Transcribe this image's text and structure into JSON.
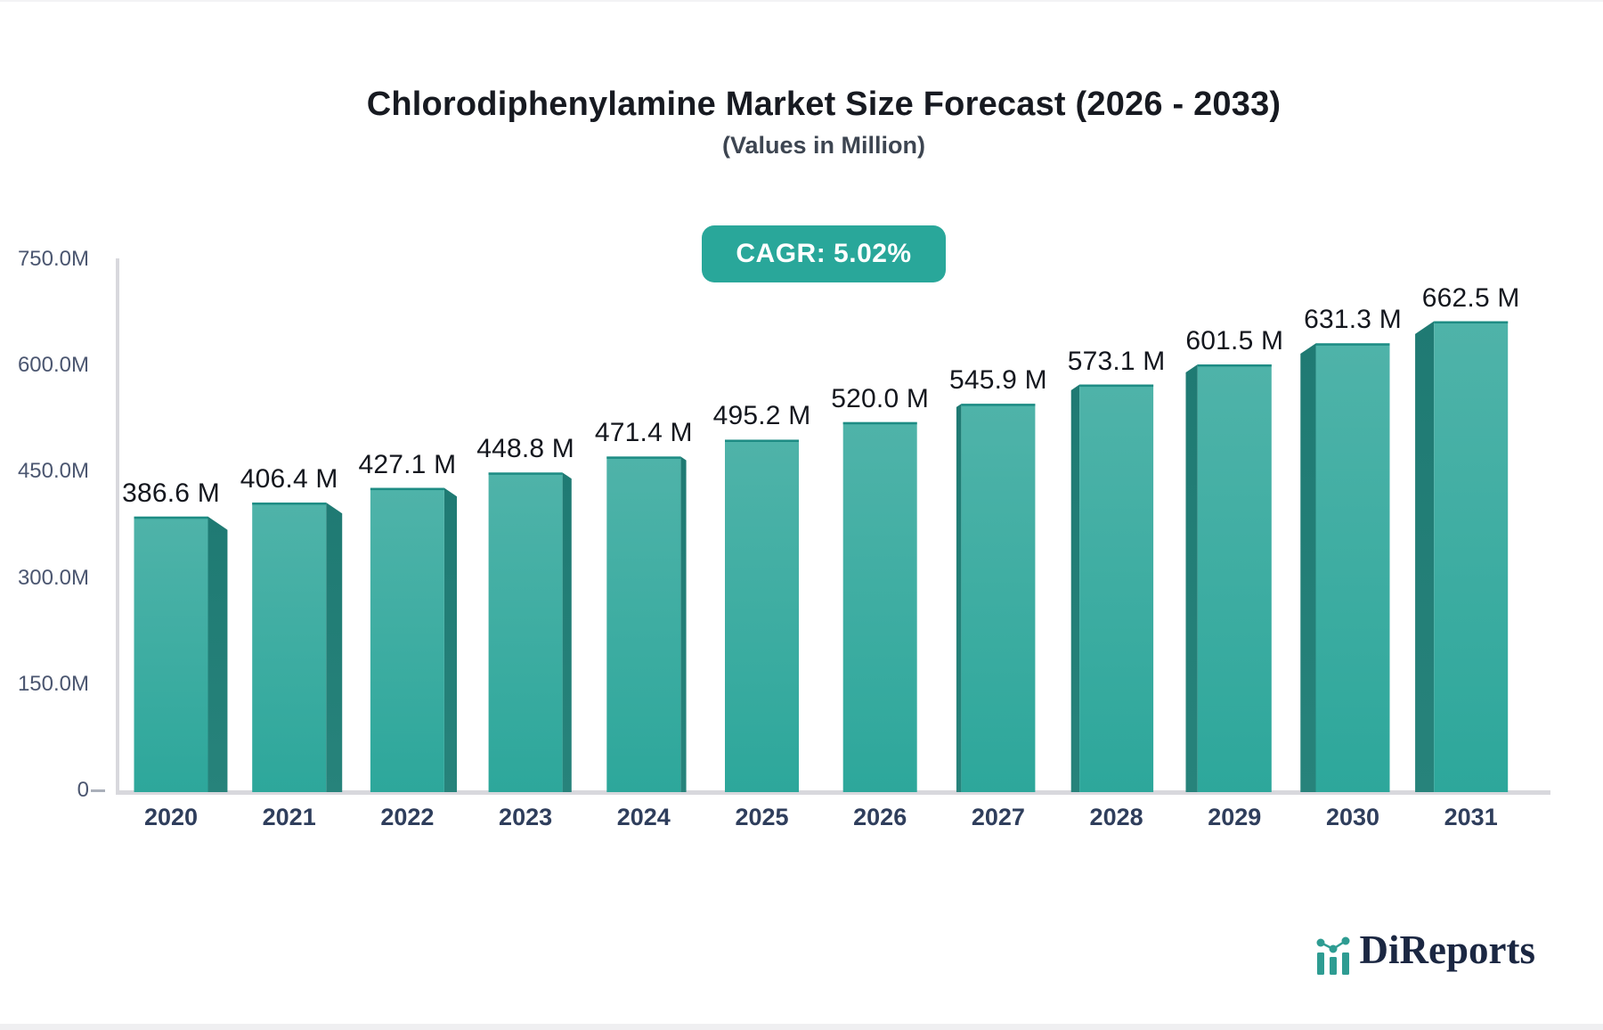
{
  "header": {
    "title": "Chlorodiphenylamine Market Size Forecast (2026 - 2033)",
    "subtitle": "(Values in Million)",
    "cagr_label": "CAGR: 5.02%"
  },
  "chart_data": {
    "type": "bar",
    "title": "Chlorodiphenylamine Market Size Forecast (2026 - 2033)",
    "subtitle": "(Values in Million)",
    "cagr": "5.02%",
    "unit": "Million",
    "categories": [
      "2020",
      "2021",
      "2022",
      "2023",
      "2024",
      "2025",
      "2026",
      "2027",
      "2028",
      "2029",
      "2030",
      "2031"
    ],
    "values": [
      386.6,
      406.4,
      427.1,
      448.8,
      471.4,
      495.2,
      520.0,
      545.9,
      573.1,
      601.5,
      631.3,
      662.5
    ],
    "value_labels": [
      "386.6 M",
      "406.4 M",
      "427.1 M",
      "448.8 M",
      "471.4 M",
      "495.2 M",
      "520.0 M",
      "545.9 M",
      "573.1 M",
      "601.5 M",
      "631.3 M",
      "662.5 M"
    ],
    "ylim": [
      0,
      750
    ],
    "y_ticks": [
      {
        "label": "750.0M",
        "value": 750
      },
      {
        "label": "600.0M",
        "value": 600
      },
      {
        "label": "450.0M",
        "value": 450
      },
      {
        "label": "300.0M",
        "value": 300
      },
      {
        "label": "150.0M",
        "value": 150
      },
      {
        "label": "0",
        "value": 0
      }
    ],
    "grid": false,
    "legend": "none",
    "bar_style": "3d-perspective",
    "colors": {
      "bar_face_top": "#4fb3a9",
      "bar_face_bottom": "#2da79b",
      "bar_top_edge": "#1e8c84",
      "bar_side_top": "#1f7a73",
      "bar_side_bottom": "#27837b",
      "axis_line": "#d8d8dd",
      "zero_dash": "#aab0ba",
      "value_label_text": "#14171e",
      "year_label_text": "#2f3e5c",
      "ytick_text": "#4b5670",
      "badge_bg": "#29a79a",
      "badge_text": "#ffffff"
    }
  },
  "branding": {
    "logo_text": "DiReports",
    "logo_icon": "mini-bar-chart-icon",
    "logo_icon_color": "#2e9c92",
    "logo_text_color": "#1b2742"
  }
}
